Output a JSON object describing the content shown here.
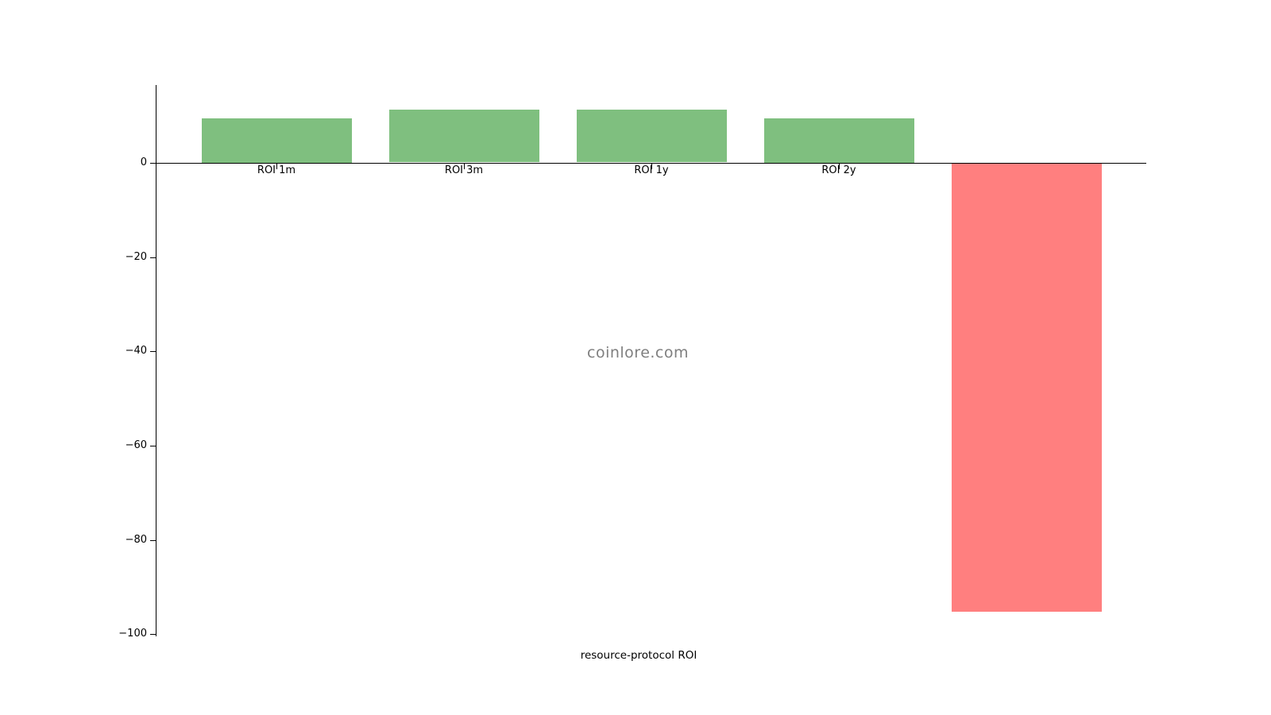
{
  "watermark": {
    "text": "coinlore.com",
    "color": "#7f7f7f"
  },
  "chart_data": {
    "type": "bar",
    "title": "",
    "xlabel": "resource-protocol ROI",
    "ylabel": "",
    "categories": [
      "ROI 1m",
      "ROI 3m",
      "ROI 1y",
      "ROI 2y",
      ""
    ],
    "values": [
      9.5,
      11.2,
      11.2,
      9.4,
      -95
    ],
    "positive_color": "#7fbf7f",
    "negative_color": "#ff7f7f",
    "axis_color": "#000000",
    "yticks": [
      0,
      -20,
      -40,
      -60,
      -80,
      -100
    ],
    "ytick_labels": [
      "0",
      "−20",
      "−40",
      "−60",
      "−80",
      "−100"
    ],
    "ylim": [
      -100.3,
      16.5
    ],
    "xlim": [
      -0.64,
      4.64
    ],
    "bar_width": 0.8,
    "grid": false,
    "legend": null
  }
}
